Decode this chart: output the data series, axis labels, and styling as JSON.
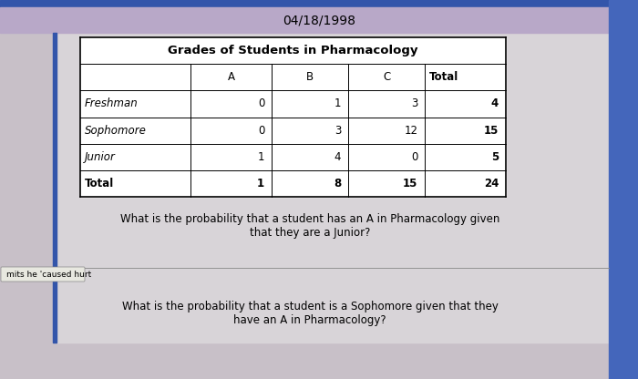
{
  "title": "04/18/1998",
  "table_title": "Grades of Students in Pharmacology",
  "col_headers": [
    "",
    "A",
    "B",
    "C",
    "Total"
  ],
  "rows": [
    [
      "Freshman",
      "0",
      "1",
      "3",
      "4"
    ],
    [
      "Sophomore",
      "0",
      "3",
      "12",
      "15"
    ],
    [
      "Junior",
      "1",
      "4",
      "0",
      "5"
    ],
    [
      "Total",
      "1",
      "8",
      "15",
      "24"
    ]
  ],
  "question1": "What is the probability that a student has an A in Pharmacology given\nthat they are a Junior?",
  "question2": "What is the probability that a student is a Sophomore given that they\nhave an A in Pharmacology?",
  "tab_label": "mits he 'caused hurt",
  "bg_color": "#c8c0c8",
  "content_bg": "#d8d4d8",
  "table_bg": "#ffffff",
  "header_bar_color": "#b8a8c8",
  "top_bar_color": "#3355aa",
  "right_bar_color": "#4466bb",
  "left_bar_color": "#3355aa",
  "title_fontsize": 10,
  "table_title_fontsize": 9.5,
  "cell_fontsize": 8.5,
  "question_fontsize": 8.5
}
